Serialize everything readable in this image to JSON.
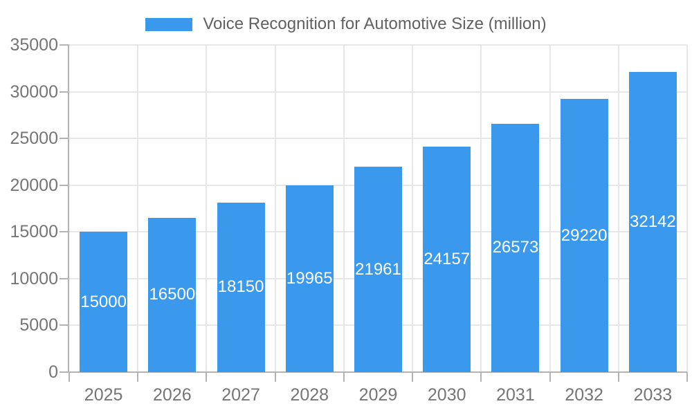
{
  "chart_data": {
    "type": "bar",
    "legend": "Voice Recognition for Automotive Size (million)",
    "legend_position": "top",
    "categories": [
      "2025",
      "2026",
      "2027",
      "2028",
      "2029",
      "2030",
      "2031",
      "2032",
      "2033"
    ],
    "values": [
      15000,
      16500,
      18150,
      19965,
      21961,
      24157,
      26573,
      29220,
      32142
    ],
    "yticks": [
      0,
      5000,
      10000,
      15000,
      20000,
      25000,
      30000,
      35000
    ],
    "ylim": [
      0,
      35000
    ],
    "grid": true,
    "xlabel": "",
    "ylabel": "",
    "colors": {
      "bar": "#3A99EC",
      "value_label": "#ffffff",
      "axis": "#b3b3b3",
      "grid": "#e7e7e7",
      "tick_label": "#757575",
      "legend_text": "#616161",
      "background": "#ffffff"
    }
  }
}
